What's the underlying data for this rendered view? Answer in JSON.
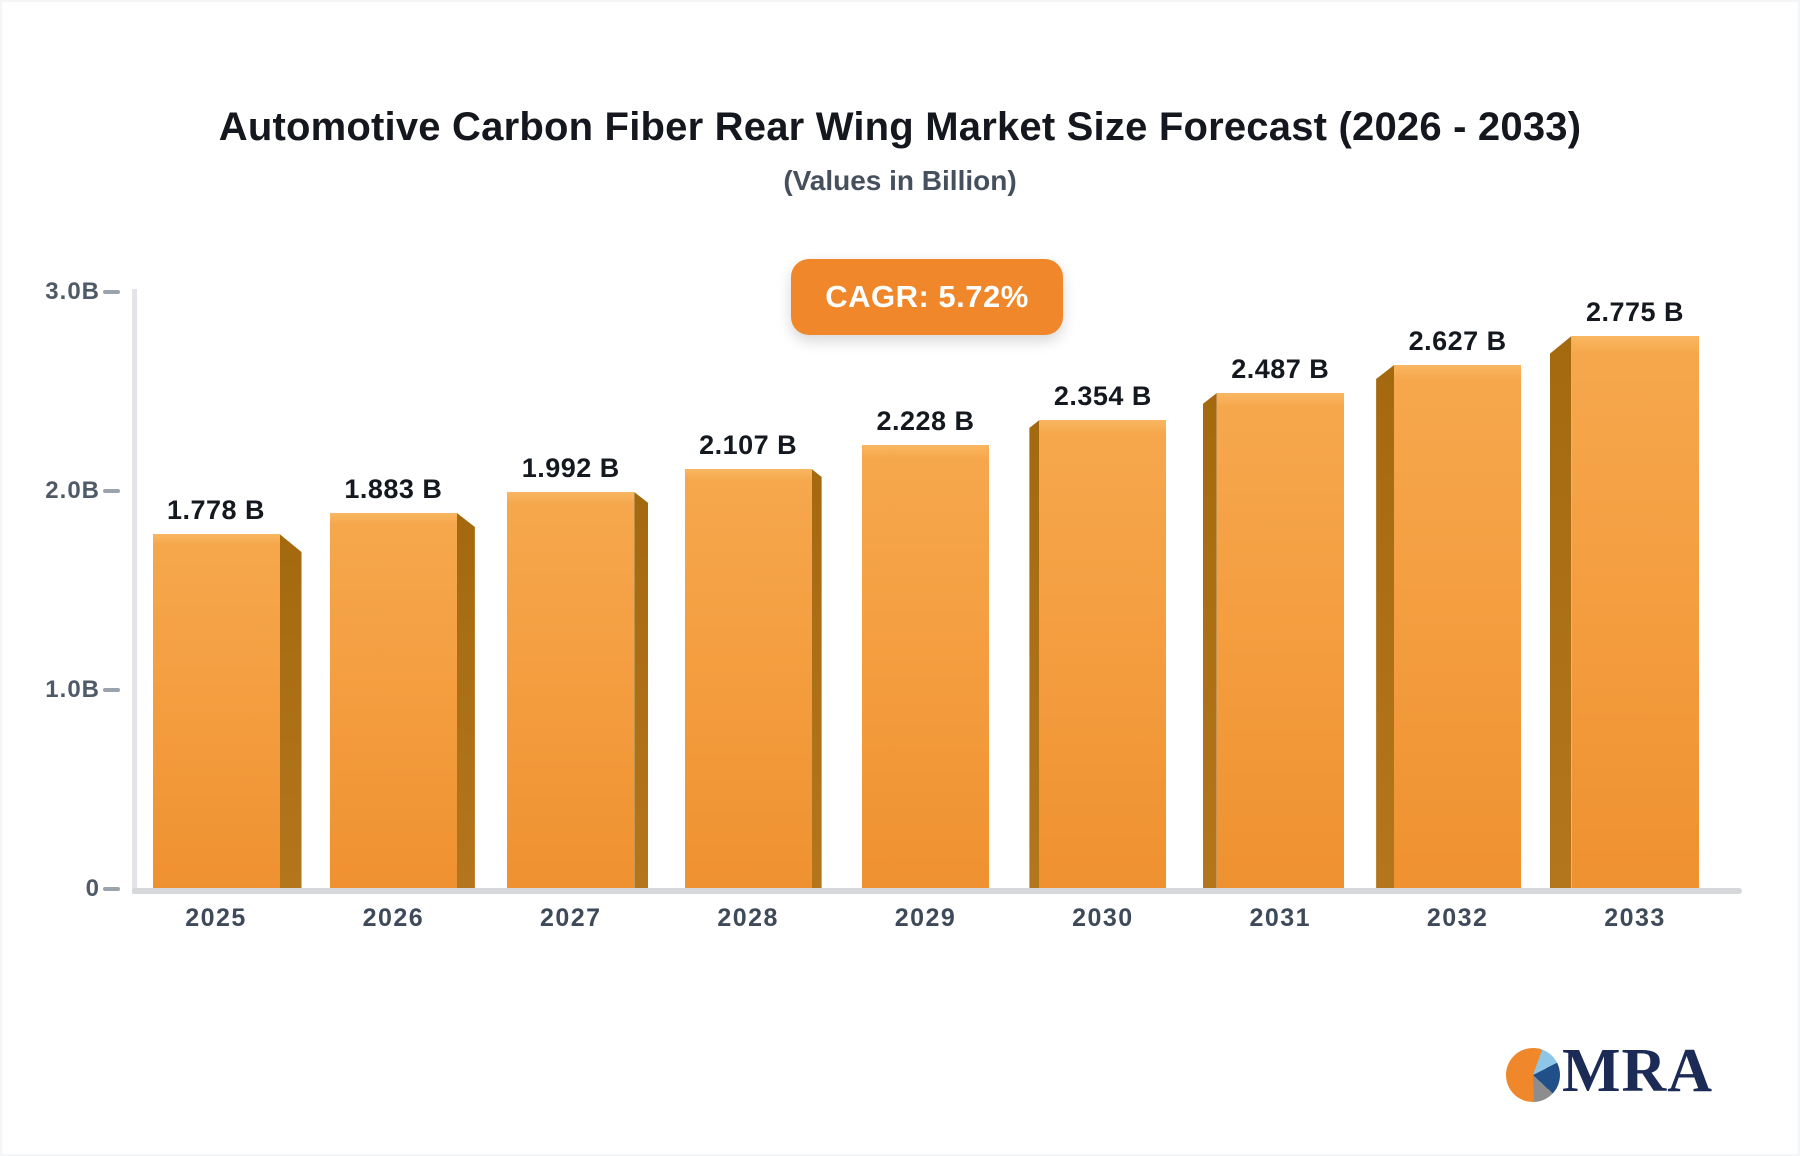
{
  "header": {
    "title": "Automotive Carbon Fiber Rear Wing Market Size Forecast (2026 - 2033)",
    "subtitle": "(Values in Billion)"
  },
  "badge": {
    "label": "CAGR: 5.72%",
    "bg_color": "#f0882b",
    "text_color": "#ffffff"
  },
  "chart_data": {
    "type": "bar",
    "categories": [
      "2025",
      "2026",
      "2027",
      "2028",
      "2029",
      "2030",
      "2031",
      "2032",
      "2033"
    ],
    "values": [
      1.778,
      1.883,
      1.992,
      2.107,
      2.228,
      2.354,
      2.487,
      2.627,
      2.775
    ],
    "value_labels": [
      "1.778 B",
      "1.883 B",
      "1.992 B",
      "2.107 B",
      "2.228 B",
      "2.354 B",
      "2.487 B",
      "2.627 B",
      "2.775 B"
    ],
    "title": "Automotive Carbon Fiber Rear Wing Market Size Forecast (2026 - 2033)",
    "subtitle": "(Values in Billion)",
    "xlabel": "",
    "ylabel": "",
    "ylim": [
      0,
      3.0
    ],
    "yticks": [
      {
        "label": "3.0B",
        "value": 3.0
      },
      {
        "label": "2.0B",
        "value": 2.0
      },
      {
        "label": "1.0B",
        "value": 1.0
      },
      {
        "label": "0",
        "value": 0.0
      }
    ],
    "grid": false,
    "legend": false,
    "bar_style": "3d-perspective",
    "colors": {
      "bar_top": "#f6a84d",
      "bar_bottom": "#ef9130",
      "bar_side": "#b0731a",
      "axis": "#d7d8dc",
      "tick": "#9aa4ae",
      "y_label": "#4f5a68",
      "x_label": "#3e4a5a",
      "value_label": "#14181f"
    }
  },
  "logo": {
    "text": "MRA",
    "text_color": "#1c2a56",
    "pie_colors": [
      "#f0882b",
      "#8ec6e7",
      "#215089",
      "#8d8d90"
    ]
  }
}
